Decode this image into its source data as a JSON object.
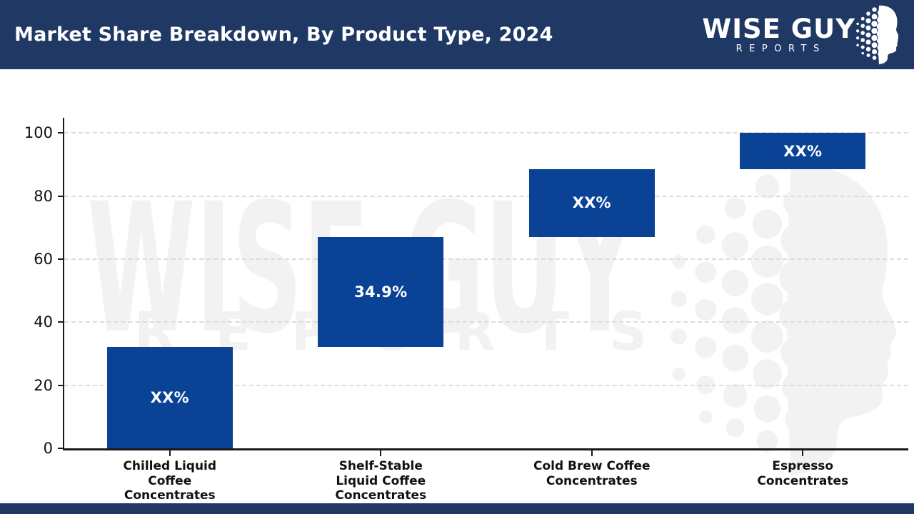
{
  "header": {
    "title": "Market Share Breakdown, By Product Type, 2024",
    "brand": {
      "name": "WISE GUY",
      "sub": "REPORTS"
    }
  },
  "watermark": {
    "line1": "WISE GUY",
    "line2": "REPORTS"
  },
  "footer": {},
  "chart_data": {
    "type": "bar",
    "subtype": "floating-waterfall",
    "title": "Market Share Breakdown, By Product Type, 2024",
    "categories": [
      [
        "Chilled Liquid",
        "Coffee",
        "Concentrates"
      ],
      [
        "Shelf-Stable",
        "Liquid Coffee",
        "Concentrates"
      ],
      [
        "Cold Brew Coffee",
        "Concentrates"
      ],
      [
        "Espresso",
        "Concentrates"
      ]
    ],
    "values": [
      32.2,
      34.9,
      21.4,
      11.5
    ],
    "starts": [
      0,
      32.2,
      67.1,
      88.5
    ],
    "bar_labels": [
      "XX%",
      "34.9%",
      "XX%",
      "XX%"
    ],
    "y_ticks": [
      0,
      20,
      40,
      60,
      80,
      100
    ],
    "ylim": [
      0,
      100
    ],
    "xlabel": "",
    "ylabel": "",
    "grid": "dashed-horizontal",
    "legend": "none",
    "bar_color": "#0a4296",
    "bar_label_color": "#ffffff",
    "accent_navy": "#1f3864"
  }
}
